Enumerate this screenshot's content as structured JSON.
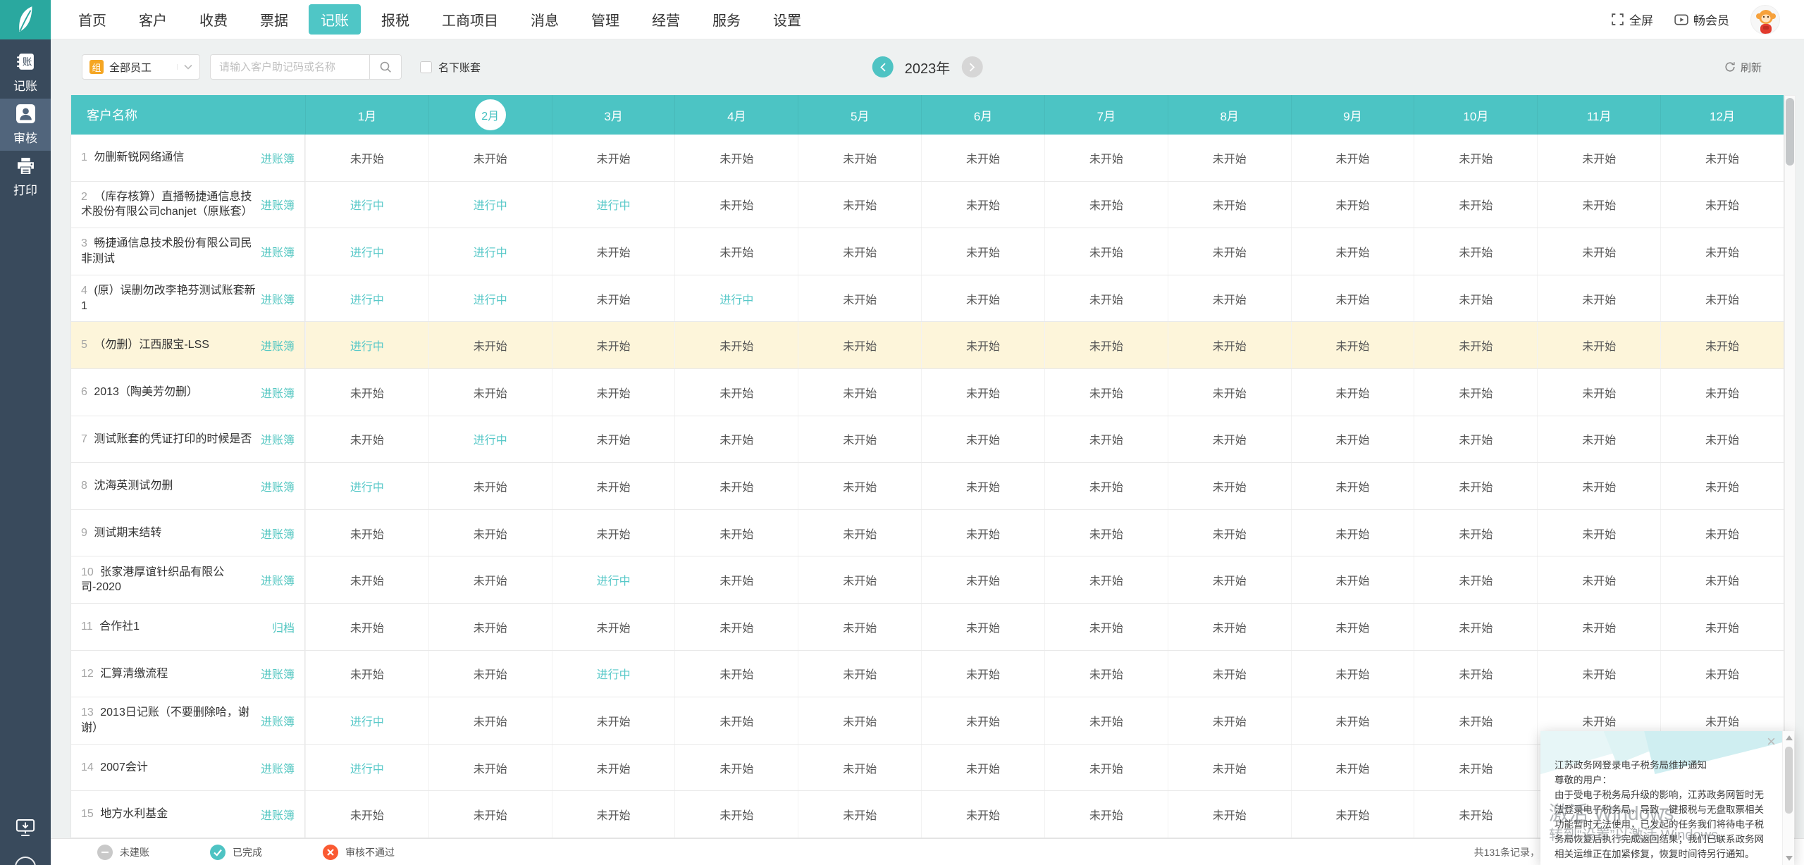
{
  "topnav": {
    "items": [
      {
        "label": "首页",
        "active": false
      },
      {
        "label": "客户",
        "active": false
      },
      {
        "label": "收费",
        "active": false
      },
      {
        "label": "票据",
        "active": false
      },
      {
        "label": "记账",
        "active": true
      },
      {
        "label": "报税",
        "active": false
      },
      {
        "label": "工商项目",
        "active": false
      },
      {
        "label": "消息",
        "active": false
      },
      {
        "label": "管理",
        "active": false
      },
      {
        "label": "经营",
        "active": false
      },
      {
        "label": "服务",
        "active": false
      },
      {
        "label": "设置",
        "active": false
      }
    ],
    "fullscreen_label": "全屏",
    "member_label": "畅会员"
  },
  "sidebar": {
    "items": [
      {
        "label": "记账",
        "glyph": "账",
        "active": false
      },
      {
        "label": "审核",
        "active": true
      },
      {
        "label": "打印",
        "active": false
      }
    ]
  },
  "filterbar": {
    "employee_filter": {
      "badge": "组",
      "value": "全部员工"
    },
    "search_placeholder": "请输入客户助记码或名称",
    "checkbox_label": "名下账套",
    "year_label": "2023年",
    "refresh_label": "刷新"
  },
  "table": {
    "name_header": "客户名称",
    "months": [
      "1月",
      "2月",
      "3月",
      "4月",
      "5月",
      "6月",
      "7月",
      "8月",
      "9月",
      "10月",
      "11月",
      "12月"
    ],
    "current_month_index": 1,
    "status_in_progress": "进行中",
    "status_not_started": "未开始",
    "rows": [
      {
        "num": 1,
        "name": "勿删新锐网络通信",
        "link": "进账簿",
        "highlight": false,
        "statuses": [
          "未开始",
          "未开始",
          "未开始",
          "未开始",
          "未开始",
          "未开始",
          "未开始",
          "未开始",
          "未开始",
          "未开始",
          "未开始",
          "未开始"
        ]
      },
      {
        "num": 2,
        "name": "（库存核算）直播畅捷通信息技术股份有限公司chanjet（原账套）",
        "link": "进账簿",
        "highlight": false,
        "statuses": [
          "进行中",
          "进行中",
          "进行中",
          "未开始",
          "未开始",
          "未开始",
          "未开始",
          "未开始",
          "未开始",
          "未开始",
          "未开始",
          "未开始"
        ]
      },
      {
        "num": 3,
        "name": "畅捷通信息技术股份有限公司民非测试",
        "link": "进账簿",
        "highlight": false,
        "statuses": [
          "进行中",
          "进行中",
          "未开始",
          "未开始",
          "未开始",
          "未开始",
          "未开始",
          "未开始",
          "未开始",
          "未开始",
          "未开始",
          "未开始"
        ]
      },
      {
        "num": 4,
        "name": "(原）误删勿改李艳芬测试账套新1",
        "link": "进账簿",
        "highlight": false,
        "statuses": [
          "进行中",
          "进行中",
          "未开始",
          "进行中",
          "未开始",
          "未开始",
          "未开始",
          "未开始",
          "未开始",
          "未开始",
          "未开始",
          "未开始"
        ]
      },
      {
        "num": 5,
        "name": "（勿删）江西服宝-LSS",
        "link": "进账簿",
        "highlight": true,
        "statuses": [
          "进行中",
          "未开始",
          "未开始",
          "未开始",
          "未开始",
          "未开始",
          "未开始",
          "未开始",
          "未开始",
          "未开始",
          "未开始",
          "未开始"
        ]
      },
      {
        "num": 6,
        "name": "2013（陶美芳勿删）",
        "link": "进账簿",
        "highlight": false,
        "statuses": [
          "未开始",
          "未开始",
          "未开始",
          "未开始",
          "未开始",
          "未开始",
          "未开始",
          "未开始",
          "未开始",
          "未开始",
          "未开始",
          "未开始"
        ]
      },
      {
        "num": 7,
        "name": "测试账套的凭证打印的时候是否",
        "link": "进账簿",
        "highlight": false,
        "statuses": [
          "未开始",
          "进行中",
          "未开始",
          "未开始",
          "未开始",
          "未开始",
          "未开始",
          "未开始",
          "未开始",
          "未开始",
          "未开始",
          "未开始"
        ]
      },
      {
        "num": 8,
        "name": "沈海英测试勿删",
        "link": "进账簿",
        "highlight": false,
        "statuses": [
          "进行中",
          "未开始",
          "未开始",
          "未开始",
          "未开始",
          "未开始",
          "未开始",
          "未开始",
          "未开始",
          "未开始",
          "未开始",
          "未开始"
        ]
      },
      {
        "num": 9,
        "name": "测试期末结转",
        "link": "进账簿",
        "highlight": false,
        "statuses": [
          "未开始",
          "未开始",
          "未开始",
          "未开始",
          "未开始",
          "未开始",
          "未开始",
          "未开始",
          "未开始",
          "未开始",
          "未开始",
          "未开始"
        ]
      },
      {
        "num": 10,
        "name": "张家港厚谊针织品有限公司-2020",
        "link": "进账簿",
        "highlight": false,
        "statuses": [
          "未开始",
          "未开始",
          "进行中",
          "未开始",
          "未开始",
          "未开始",
          "未开始",
          "未开始",
          "未开始",
          "未开始",
          "未开始",
          "未开始"
        ]
      },
      {
        "num": 11,
        "name": "合作社1",
        "link": "归档",
        "highlight": false,
        "statuses": [
          "未开始",
          "未开始",
          "未开始",
          "未开始",
          "未开始",
          "未开始",
          "未开始",
          "未开始",
          "未开始",
          "未开始",
          "未开始",
          "未开始"
        ]
      },
      {
        "num": 12,
        "name": "汇算清缴流程",
        "link": "进账簿",
        "highlight": false,
        "statuses": [
          "未开始",
          "未开始",
          "进行中",
          "未开始",
          "未开始",
          "未开始",
          "未开始",
          "未开始",
          "未开始",
          "未开始",
          "未开始",
          "未开始"
        ]
      },
      {
        "num": 13,
        "name": "2013日记账（不要删除哈，谢谢）",
        "link": "进账簿",
        "highlight": false,
        "statuses": [
          "进行中",
          "未开始",
          "未开始",
          "未开始",
          "未开始",
          "未开始",
          "未开始",
          "未开始",
          "未开始",
          "未开始",
          "未开始",
          "未开始"
        ]
      },
      {
        "num": 14,
        "name": "2007会计",
        "link": "进账簿",
        "highlight": false,
        "statuses": [
          "进行中",
          "未开始",
          "未开始",
          "未开始",
          "未开始",
          "未开始",
          "未开始",
          "未开始",
          "未开始",
          "未开始",
          "未开始",
          "未开始"
        ]
      },
      {
        "num": 15,
        "name": "地方水利基金",
        "link": "进账簿",
        "highlight": false,
        "statuses": [
          "未开始",
          "未开始",
          "未开始",
          "未开始",
          "未开始",
          "未开始",
          "未开始",
          "未开始",
          "未开始",
          "未开始",
          "未开始",
          "未开始"
        ]
      }
    ]
  },
  "legend": {
    "items": [
      {
        "label": "未建账",
        "type": "minus",
        "color": "#c9c9c9"
      },
      {
        "label": "已完成",
        "type": "check",
        "color": "#4ec3c3"
      },
      {
        "label": "审核不通过",
        "type": "cross",
        "color": "#fa5a32"
      }
    ]
  },
  "footer": {
    "record_count": "共131条记录，"
  },
  "notification": {
    "title": "江苏政务网登录电子税务局维护通知",
    "greeting": "尊敬的用户：",
    "body": "由于受电子税务局升级的影响，江苏政务网暂时无法登录电子税务局，导致一键报税与无盘取票相关功能暂时无法使用，已发起的任务我们将待电子税务局恢复后执行完成返回结果；我们已联系政务网相关运维正在加紧修复，恢复时间待另行通知。",
    "close_glyph": "×"
  },
  "watermark": {
    "line1": "激活 Windows",
    "line2": "转到“设置”以激活 Windows。"
  },
  "colors": {
    "accent": "#4cc4c4",
    "logo_teal": "#2aa89f",
    "sidebar": "#394a5c",
    "in_progress": "#57c8c8",
    "not_started": "#555555",
    "row_highlight": "#fdf5da",
    "badge_orange": "#f5a623",
    "legend_fail": "#fa5a32"
  }
}
